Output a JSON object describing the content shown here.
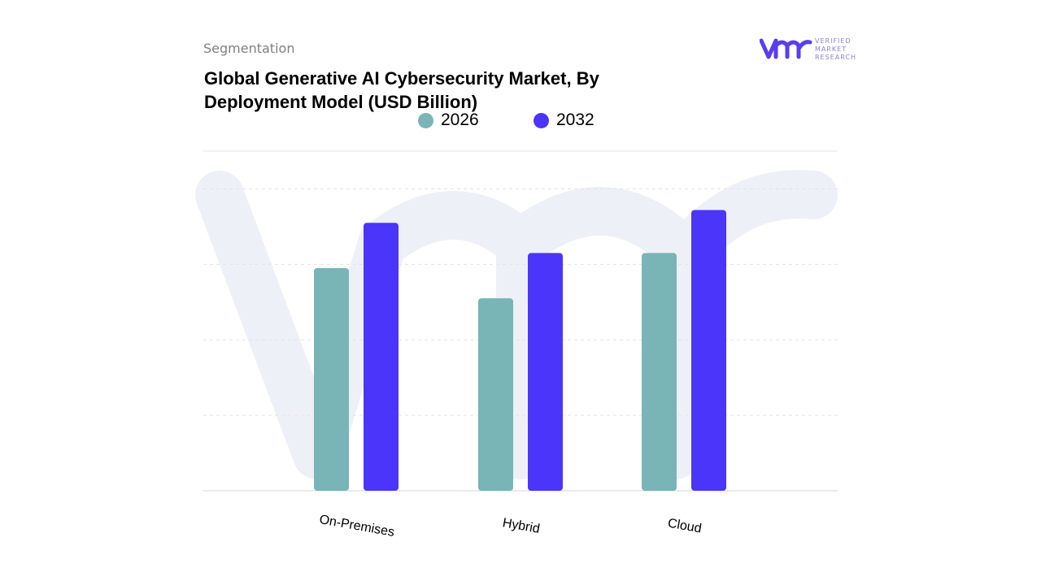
{
  "header": {
    "section_label": "Segmentation",
    "title": "Global Generative AI Cybersecurity Market, By Deployment Model (USD Billion)"
  },
  "brand": {
    "line1": "VERIFIED",
    "line2": "MARKET",
    "line3": "RESEARCH",
    "color": "#5a3df0",
    "text_color": "#8a7fd8"
  },
  "colors": {
    "series_2026": "#79b4b7",
    "series_2032": "#4b35fb",
    "grid": "#e3e3e3",
    "watermark": "#eef0f7"
  },
  "chart_data": {
    "type": "bar",
    "title": "Global Generative AI Cybersecurity Market, By Deployment Model (USD Billion)",
    "categories": [
      "On-Premises",
      "Hybrid",
      "Cloud"
    ],
    "series": [
      {
        "name": "2026",
        "values": [
          2.95,
          2.55,
          3.15
        ]
      },
      {
        "name": "2032",
        "values": [
          3.55,
          3.15,
          3.72
        ]
      }
    ],
    "ylim": [
      0,
      4.5
    ],
    "grid": true,
    "legend": "top-center",
    "xlabel": "",
    "ylabel": ""
  }
}
